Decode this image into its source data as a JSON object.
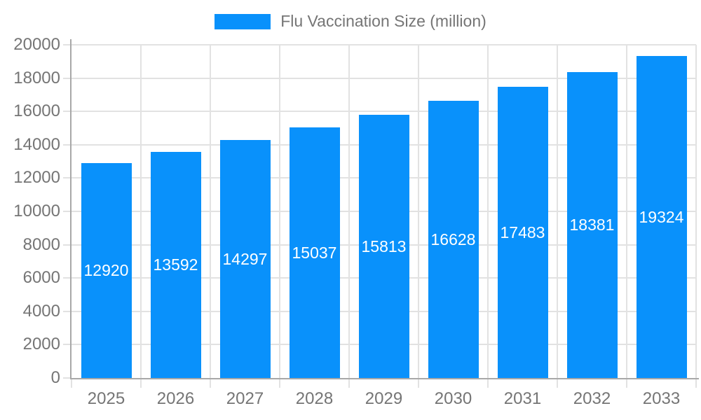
{
  "chart_data": {
    "type": "bar",
    "title": "Flu Vaccination Size (million)",
    "categories": [
      "2025",
      "2026",
      "2027",
      "2028",
      "2029",
      "2030",
      "2031",
      "2032",
      "2033"
    ],
    "values": [
      12920,
      13592,
      14297,
      15037,
      15813,
      16628,
      17483,
      18381,
      19324
    ],
    "series": [
      {
        "name": "Flu Vaccination Size (million)",
        "values": [
          12920,
          13592,
          14297,
          15037,
          15813,
          16628,
          17483,
          18381,
          19324
        ]
      }
    ],
    "xlabel": "",
    "ylabel": "",
    "ylim": [
      0,
      20000
    ],
    "ytick_step": 2000,
    "grid": true,
    "legend_position": "top",
    "data_labels": "inside-center",
    "colors": {
      "bar": "#0991fb",
      "bar_label": "#ffffff",
      "axis_line": "#a8a8a8",
      "grid_line": "#e2e2e2",
      "tick_label": "#757575",
      "background": "#ffffff"
    }
  }
}
